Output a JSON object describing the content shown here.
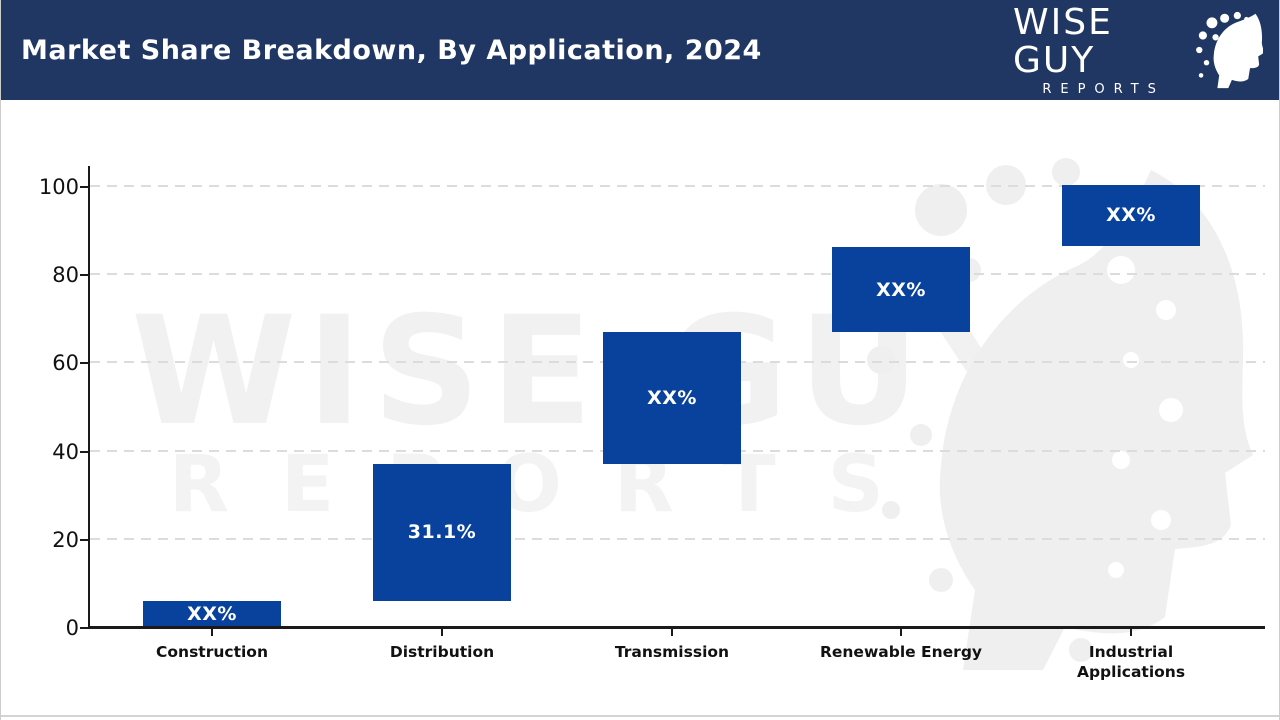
{
  "header": {
    "title": "Market Share Breakdown, By Application, 2024",
    "logo": {
      "line1": "WISE GUY",
      "line2": "REPORTS"
    }
  },
  "watermark": {
    "line1": "WISE GUY",
    "line2": "REPORTS"
  },
  "colors": {
    "header_bg": "#203764",
    "bar": "#08429c",
    "grid": "#dcdcdc",
    "axis": "#1a1a1a",
    "bar_label": "#ffffff",
    "watermark": "#f1f1f1"
  },
  "chart_data": {
    "type": "bar",
    "subtype": "waterfall",
    "title": "Market Share Breakdown, By Application, 2024",
    "xlabel": "",
    "ylabel": "",
    "ylim": [
      0,
      105
    ],
    "yticks": [
      0,
      20,
      40,
      60,
      80,
      100
    ],
    "grid": "horizontal-dashed",
    "legend": "none",
    "categories": [
      "Construction",
      "Distribution",
      "Transmission",
      "Renewable Energy",
      "Industrial\nApplications"
    ],
    "segments": [
      {
        "category": "Construction",
        "start": 0,
        "end": 5.9,
        "label": "XX%"
      },
      {
        "category": "Distribution",
        "start": 5.9,
        "end": 37.0,
        "label": "31.1%"
      },
      {
        "category": "Transmission",
        "start": 37.0,
        "end": 66.8,
        "label": "XX%"
      },
      {
        "category": "Renewable Energy",
        "start": 66.8,
        "end": 86.1,
        "label": "XX%"
      },
      {
        "category": "Industrial\nApplications",
        "start": 86.5,
        "end": 100.2,
        "label": "XX%"
      }
    ]
  }
}
